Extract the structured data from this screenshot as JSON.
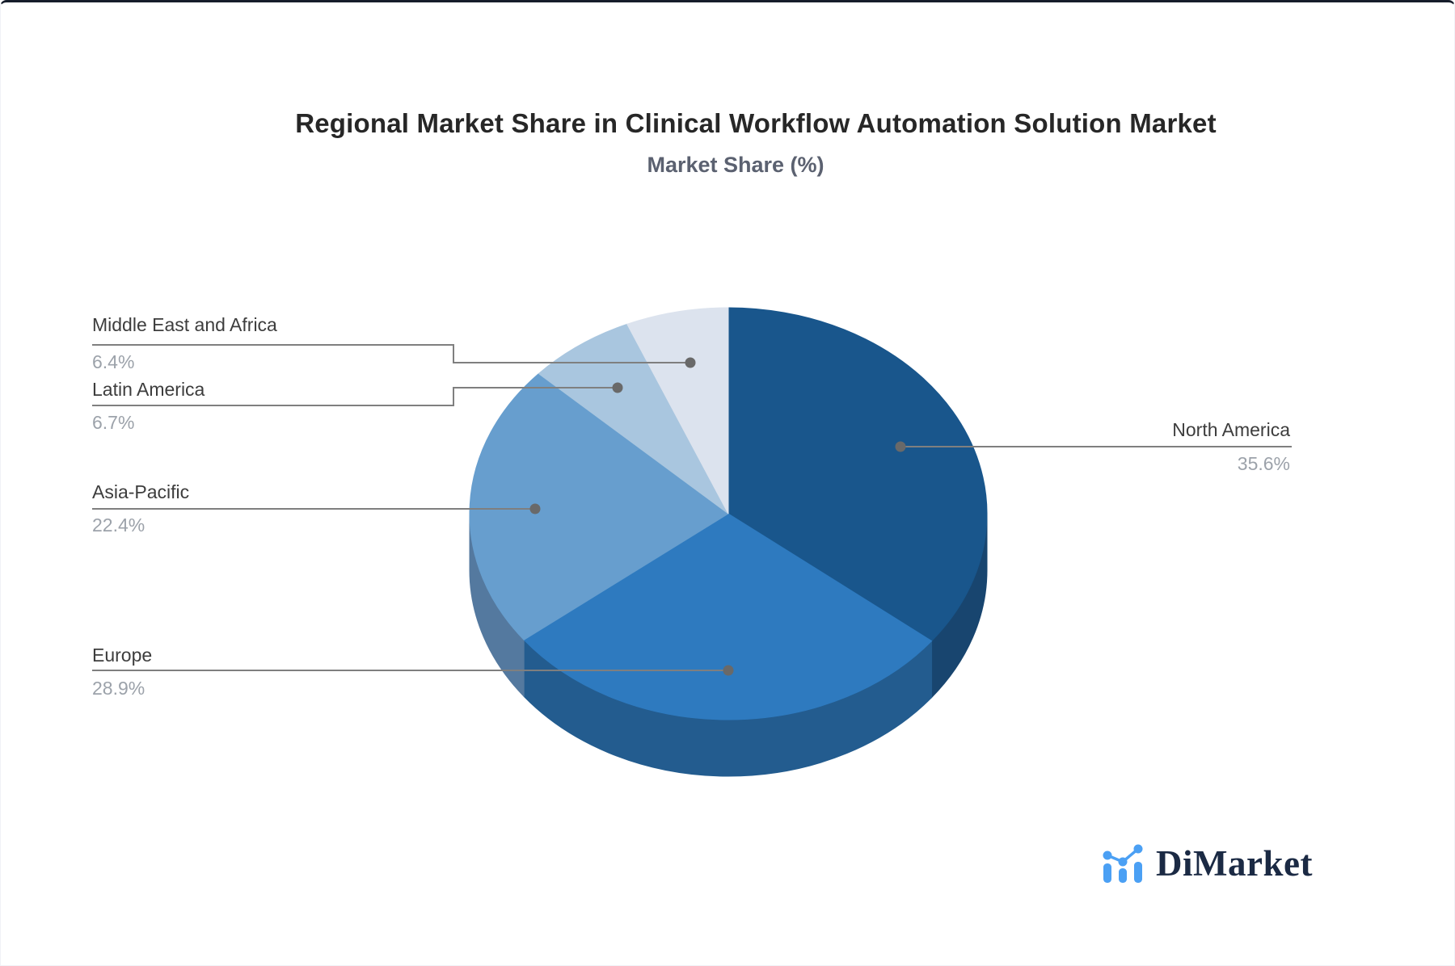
{
  "chart_data": {
    "type": "pie",
    "title": "Regional Market Share in Clinical Workflow Automation Solution Market",
    "subtitle": "Market Share (%)",
    "unit": "%",
    "effect_3d": true,
    "start_angle_deg": 0,
    "direction": "clockwise",
    "series": [
      {
        "label": "North America",
        "value": 35.6,
        "pct": "35.6%",
        "color": "#19568C",
        "side_color": "#18456F"
      },
      {
        "label": "Europe",
        "value": 28.9,
        "pct": "28.9%",
        "color": "#2E7ABF",
        "side_color": "#235C8F"
      },
      {
        "label": "Asia-Pacific",
        "value": 22.4,
        "pct": "22.4%",
        "color": "#679ECE",
        "side_color": "#54799F"
      },
      {
        "label": "Latin America",
        "value": 6.7,
        "pct": "6.7%",
        "color": "#A9C6DF",
        "side_color": "#8FABC4"
      },
      {
        "label": "Middle East and Africa",
        "value": 6.4,
        "pct": "6.4%",
        "color": "#DCE3EE",
        "side_color": "#BCC8D8"
      }
    ],
    "legend_position": "callout-labels",
    "grid": false
  },
  "branding": {
    "logo_text": "DiMarket",
    "logo_icon": "bar-chart-icon",
    "logo_text_color": "#1B2A44",
    "logo_icon_color": "#4BA0F4"
  },
  "colors": {
    "connector_line": "#7F7F7F",
    "connector_dot": "#696969",
    "label_text": "#3D3D3D",
    "pct_text": "#9CA2AA",
    "top_border": "#161D2B"
  }
}
